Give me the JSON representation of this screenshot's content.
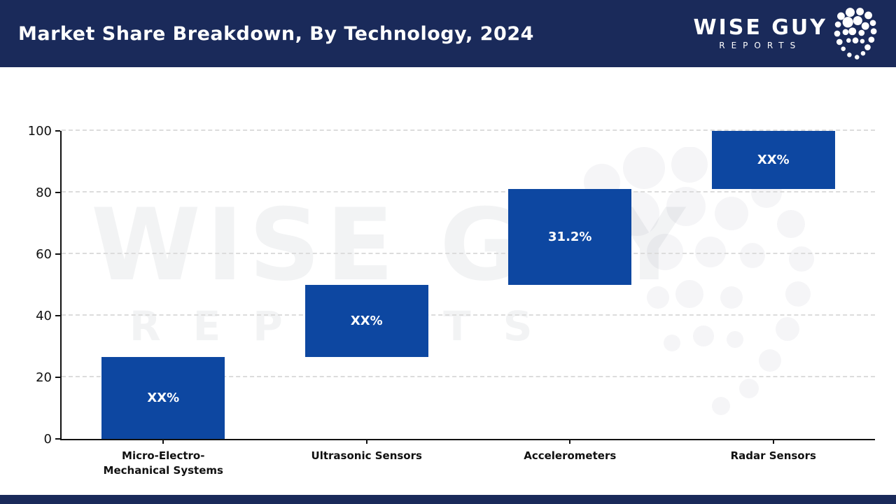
{
  "header": {
    "title": "Market Share Breakdown, By Technology, 2024",
    "logo": {
      "line1": "WISE GUY",
      "line2": "REPORTS"
    }
  },
  "watermark": {
    "line1": "WISE GUY",
    "line2": "REPORTS"
  },
  "footer": {},
  "colors": {
    "header_bg": "#1a2a5a",
    "bar_fill": "#0d47a1",
    "bar_label_text": "#ffffff",
    "gridline": "#dcdcdc"
  },
  "chart_data": {
    "type": "bar",
    "subtype": "waterfall",
    "title": "Market Share Breakdown, By Technology, 2024",
    "xlabel": "",
    "ylabel": "",
    "ylim": [
      0,
      100
    ],
    "yticks": [
      0,
      20,
      40,
      60,
      80,
      100
    ],
    "grid": "horizontal-dashed",
    "legend": "none",
    "categories": [
      "Micro-Electro-\nMechanical Systems",
      "Ultrasonic Sensors",
      "Accelerometers",
      "Radar Sensors"
    ],
    "segments": [
      {
        "category": "Micro-Electro-Mechanical Systems",
        "start": 0,
        "end": 26.5,
        "label": "XX%"
      },
      {
        "category": "Ultrasonic Sensors",
        "start": 26.5,
        "end": 50.0,
        "label": "XX%"
      },
      {
        "category": "Accelerometers",
        "start": 50.0,
        "end": 81.2,
        "label": "31.2%"
      },
      {
        "category": "Radar Sensors",
        "start": 81.2,
        "end": 100.0,
        "label": "XX%"
      }
    ]
  }
}
